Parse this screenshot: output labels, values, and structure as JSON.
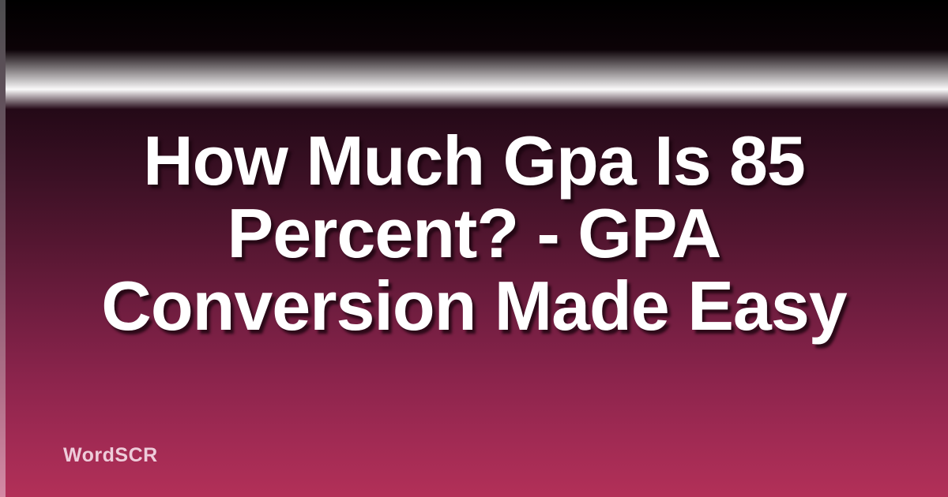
{
  "card": {
    "title": "How Much Gpa Is 85 Percent? - GPA Conversion Made Easy",
    "title_lines": {
      "line1": "How Much Gpa Is 85",
      "line2": "Percent? - GPA",
      "line3": "Conversion Made Easy"
    },
    "brand": "WordSCR",
    "colors": {
      "gradient_top": "#000000",
      "gradient_bottom": "#b23058",
      "title_color": "#ffffff",
      "title_shadow": "rgba(25, 4, 14, 0.8)",
      "brand_color": "#eeccda",
      "left_strip_top": "#4d4d4f",
      "left_strip_bottom": "#d489a4"
    }
  }
}
